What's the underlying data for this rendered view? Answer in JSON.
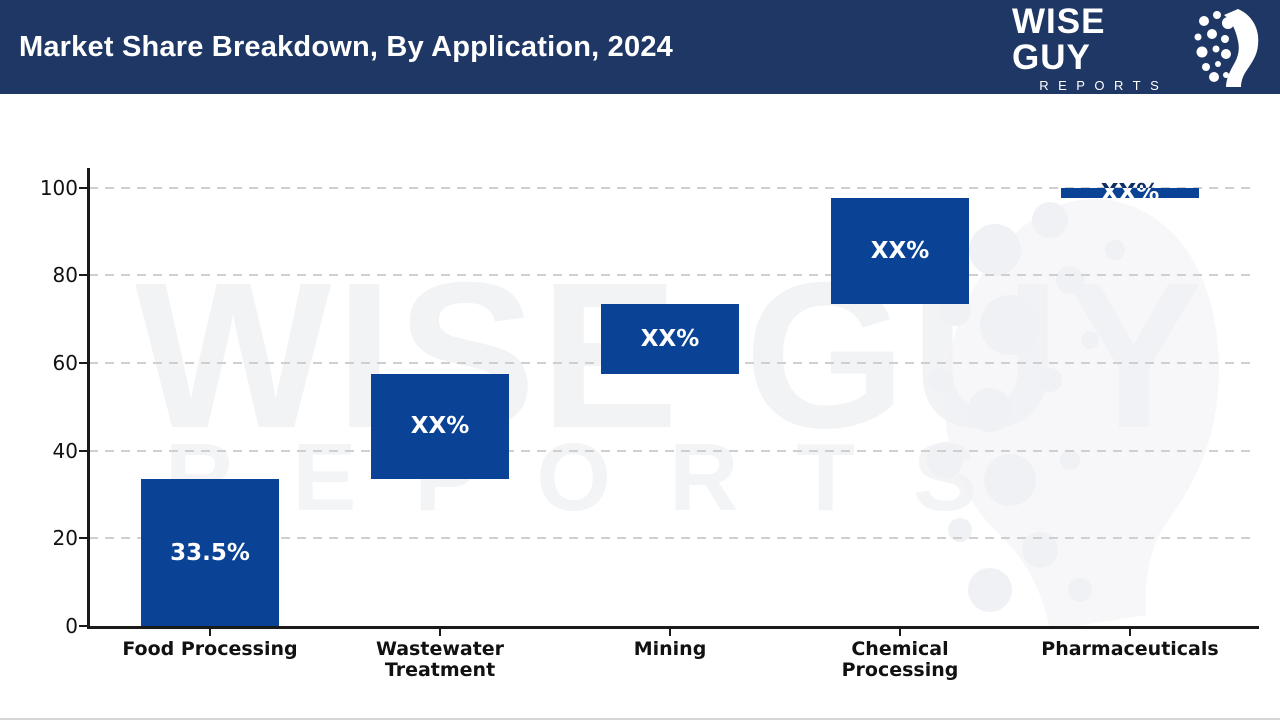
{
  "header": {
    "title": "Market Share Breakdown, By Application, 2024",
    "bg_color": "#1f3765",
    "logo": {
      "line1": "WISE GUY",
      "line2": "REPORTS",
      "face_icon": "dotted-head-profile"
    }
  },
  "watermark": {
    "line1": "WISE GUY",
    "line2": "REPORTS",
    "head_icon": "dotted-head-profile"
  },
  "chart_data": {
    "type": "bar",
    "subtype": "waterfall",
    "title": "Market Share Breakdown, By Application, 2024",
    "categories": [
      "Food Processing",
      "Wastewater Treatment",
      "Mining",
      "Chemical Processing",
      "Pharmaceuticals"
    ],
    "segments": [
      {
        "category": "Food Processing",
        "start": 0,
        "end": 33.5,
        "label": "33.5%"
      },
      {
        "category": "Wastewater Treatment",
        "start": 33.5,
        "end": 57.5,
        "label": "XX%"
      },
      {
        "category": "Mining",
        "start": 57.5,
        "end": 73.5,
        "label": "XX%"
      },
      {
        "category": "Chemical Processing",
        "start": 73.5,
        "end": 97.5,
        "label": "XX%"
      },
      {
        "category": "Pharmaceuticals",
        "start": 97.5,
        "end": 100,
        "label": "XX%"
      }
    ],
    "xlabel": "",
    "ylabel": "",
    "y_ticks": [
      0,
      20,
      40,
      60,
      80,
      100
    ],
    "ylim": [
      0,
      105
    ],
    "grid": "horizontal-dashed",
    "legend": "none",
    "bar_color": "#0a4296",
    "label_color_inside": "#ffffff",
    "label_color_outside": "#0d2f63"
  }
}
